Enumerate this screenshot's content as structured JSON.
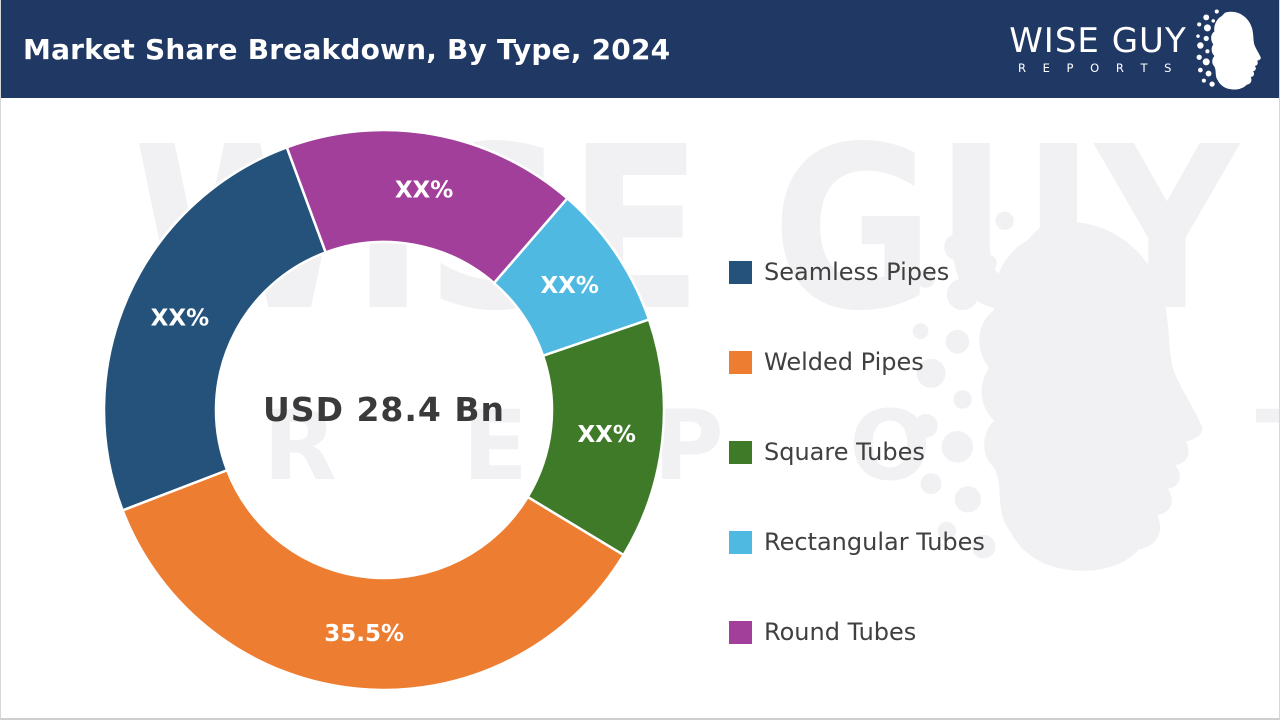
{
  "header": {
    "title": "Market Share Breakdown, By Type, 2024"
  },
  "brand": {
    "name": "WISE GUY",
    "tagline": "R E P O R T S"
  },
  "watermark": {
    "line1": "WISE GUY",
    "line2": "R E P O R T S"
  },
  "chart_data": {
    "type": "donut",
    "title": "Market Share Breakdown, By Type, 2024",
    "center_label": "USD 28.4 Bn",
    "start_angle_deg": 110.3,
    "direction": "counterclockwise",
    "inner_radius_ratio": 0.6,
    "legend_position": "right",
    "series": [
      {
        "name": "Seamless Pipes",
        "value_pct": 25.2,
        "label": "XX%",
        "color": "#25527b"
      },
      {
        "name": "Welded Pipes",
        "value_pct": 35.5,
        "label": "35.5%",
        "color": "#ed7d31"
      },
      {
        "name": "Square Tubes",
        "value_pct": 13.9,
        "label": "XX%",
        "color": "#3f7a28"
      },
      {
        "name": "Rectangular Tubes",
        "value_pct": 8.4,
        "label": "XX%",
        "color": "#4fb9e2"
      },
      {
        "name": "Round Tubes",
        "value_pct": 17.0,
        "label": "XX%",
        "color": "#a23f9b"
      }
    ]
  },
  "colors": {
    "header_bg": "#203864",
    "text_dark": "#3a3a3a",
    "legend_text": "#404040",
    "watermark": "#f1f1f3",
    "border": "#cfcfcf",
    "slice_stroke": "#ffffff"
  }
}
